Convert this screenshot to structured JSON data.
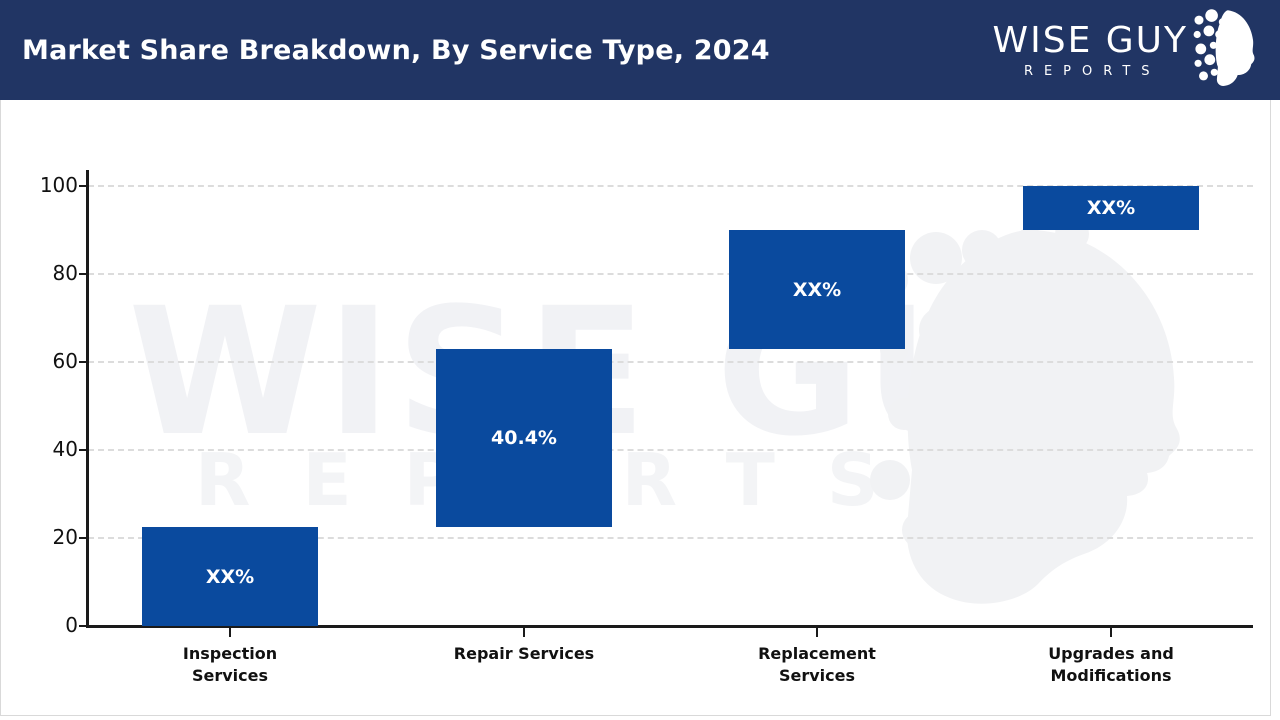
{
  "header": {
    "title": "Market Share Breakdown, By Service Type, 2024",
    "logo": {
      "line1": "WISE GUY",
      "line2": "REPORTS"
    }
  },
  "watermark": {
    "line1": "WISE GUY",
    "line2": "REPORTS"
  },
  "colors": {
    "header_bg": "#213564",
    "bar": "#0a4a9e",
    "grid": "#dcdcdc",
    "axis": "#1a1a1a",
    "bar_label": "#ffffff",
    "watermark": "#f1f2f5"
  },
  "chart_data": {
    "type": "bar",
    "subtype": "floating-waterfall",
    "title": "Market Share Breakdown, By Service Type, 2024",
    "categories": [
      "Inspection Services",
      "Repair Services",
      "Replacement Services",
      "Upgrades and Modifications"
    ],
    "category_display": [
      "Inspection\nServices",
      "Repair Services",
      "Replacement\nServices",
      "Upgrades and\nModifications"
    ],
    "bars": [
      {
        "category": "Inspection Services",
        "start": 0,
        "end": 22.5,
        "label": "XX%"
      },
      {
        "category": "Repair Services",
        "start": 22.5,
        "end": 62.9,
        "label": "40.4%"
      },
      {
        "category": "Replacement Services",
        "start": 62.9,
        "end": 90,
        "label": "XX%"
      },
      {
        "category": "Upgrades and Modifications",
        "start": 90,
        "end": 100,
        "label": "XX%"
      }
    ],
    "yticks": [
      0,
      20,
      40,
      60,
      80,
      100
    ],
    "ylim": [
      0,
      105
    ],
    "xlabel": "",
    "ylabel": "",
    "grid": "horizontal-dashed",
    "legend": "none",
    "bar_color": "#0a4a9e"
  }
}
